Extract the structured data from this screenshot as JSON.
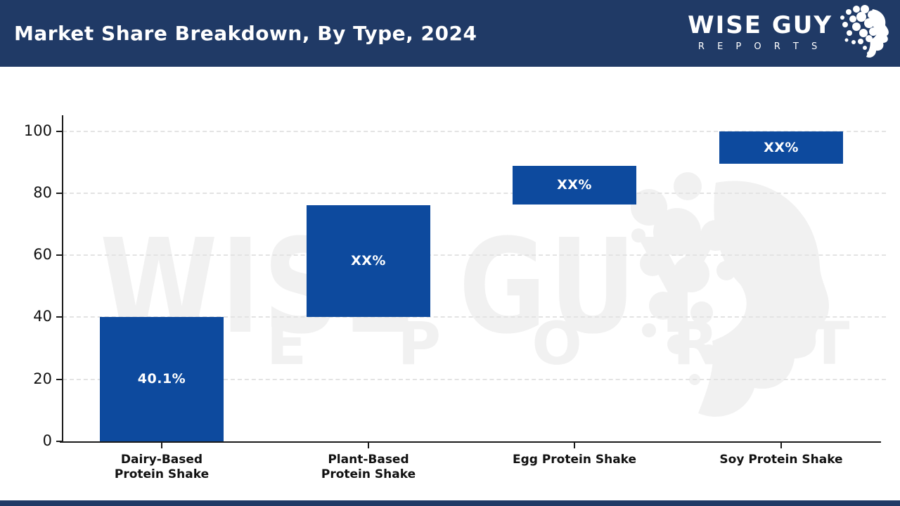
{
  "header": {
    "title": "Market Share Breakdown, By Type, 2024",
    "logo": {
      "brand_line1": "WISE GUY",
      "brand_line2": "R E P O R T S"
    }
  },
  "watermark": {
    "line1": "WISE GUY",
    "line2": "R E P O R T S"
  },
  "colors": {
    "header_bg": "#203a66",
    "footer_bg": "#203a66",
    "bar_fill": "#0d4a9e",
    "bar_label_text": "#ffffff",
    "axis": "#1a1a1a",
    "gridline": "#e3e3e3",
    "watermark": "#f1f1f1",
    "title_text": "#ffffff",
    "category_text": "#111111"
  },
  "chart_data": {
    "type": "bar",
    "subtype": "stacked-waterfall",
    "title": "Market Share Breakdown, By Type, 2024",
    "categories": [
      "Dairy-Based Protein Shake",
      "Plant-Based Protein Shake",
      "Egg Protein Shake",
      "Soy Protein Shake"
    ],
    "category_label_lines": [
      [
        "Dairy-Based",
        "Protein Shake"
      ],
      [
        "Plant-Based",
        "Protein Shake"
      ],
      [
        "Egg Protein Shake"
      ],
      [
        "Soy Protein Shake"
      ]
    ],
    "segments": [
      {
        "category": "Dairy-Based Protein Shake",
        "start": 0,
        "end": 40.1,
        "label": "40.1%"
      },
      {
        "category": "Plant-Based Protein Shake",
        "start": 40.1,
        "end": 76.2,
        "label": "XX%"
      },
      {
        "category": "Egg Protein Shake",
        "start": 76.4,
        "end": 88.9,
        "label": "XX%"
      },
      {
        "category": "Soy Protein Shake",
        "start": 89.4,
        "end": 100,
        "label": "XX%"
      }
    ],
    "yticks": [
      0,
      20,
      40,
      60,
      80,
      100
    ],
    "ylim": [
      0,
      105
    ],
    "xlabel": "",
    "ylabel": "",
    "grid": "horizontal-dashed",
    "legend": "none"
  }
}
